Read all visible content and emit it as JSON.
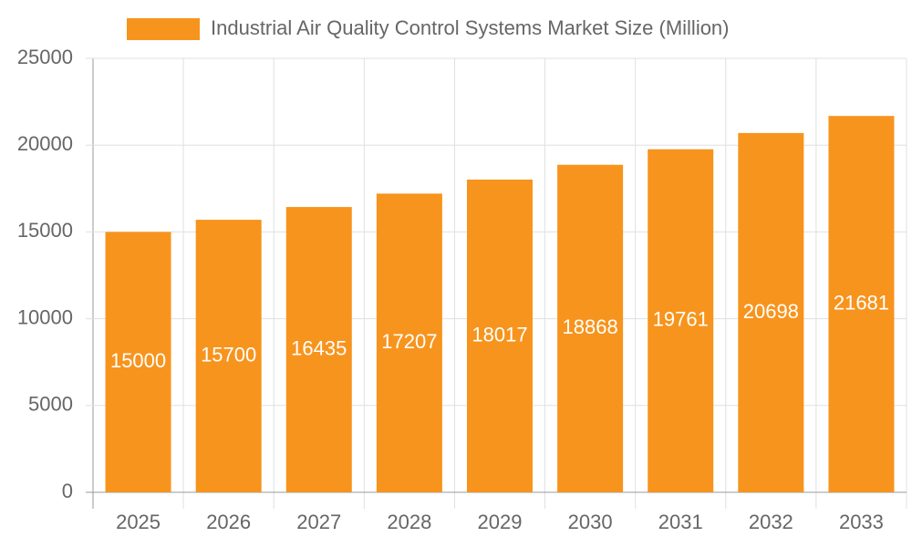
{
  "chart_data": {
    "type": "bar",
    "categories": [
      "2025",
      "2026",
      "2027",
      "2028",
      "2029",
      "2030",
      "2031",
      "2032",
      "2033"
    ],
    "series": [
      {
        "name": "Industrial Air Quality Control Systems Market Size (Million)",
        "color": "#f7941d",
        "values": [
          15000,
          15700,
          16435,
          17207,
          18017,
          18868,
          19761,
          20698,
          21681
        ]
      }
    ],
    "ylim": [
      0,
      25000
    ],
    "yticks": [
      0,
      5000,
      10000,
      15000,
      20000,
      25000
    ],
    "grid": true,
    "legend": "top"
  }
}
